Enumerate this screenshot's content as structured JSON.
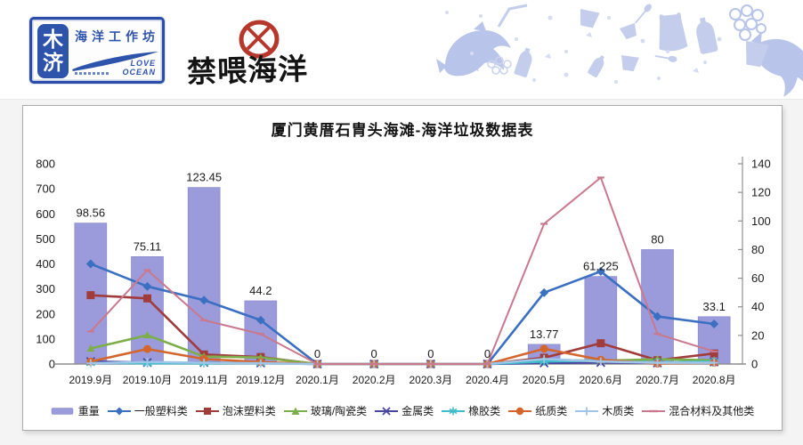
{
  "header": {
    "workshop_logo": {
      "char_top": "木",
      "char_bottom": "济",
      "title": "海洋工作坊",
      "love": "LOVE",
      "ocean": "OCEAN",
      "accent_color": "#2e53ab"
    },
    "ban_logo": {
      "text": "禁喂海洋",
      "symbol": "no-circle-cross-icon",
      "symbol_color": "#b6372c"
    },
    "decor": {
      "pattern": "marine-litter-pattern",
      "color": "#c4cdec",
      "icons": [
        "dolphin-icon",
        "plastic-bottle-icon",
        "plastic-bag-icon",
        "cup-icon",
        "spoon-icon",
        "straw-icon",
        "bubbles-icon"
      ]
    }
  },
  "chart_data": {
    "type": "combo",
    "title": "厦门黄厝石胄头海滩-海洋垃圾数据表",
    "grid": false,
    "legend_position": "bottom",
    "categories": [
      "2019.9月",
      "2019.10月",
      "2019.11月",
      "2019.12月",
      "2020.1月",
      "2020.2月",
      "2020.3月",
      "2020.4月",
      "2020.5月",
      "2020.6月",
      "2020.7月",
      "2020.8月"
    ],
    "left_axis": {
      "min": 0,
      "max": 800,
      "ticks": [
        "0",
        "100",
        "200",
        "300",
        "400",
        "500",
        "600",
        "700",
        "800"
      ]
    },
    "right_axis": {
      "min": 0,
      "max": 140,
      "ticks": [
        "0",
        "20",
        "40",
        "60",
        "80",
        "100",
        "120",
        "140"
      ]
    },
    "bar_series": {
      "name": "重量",
      "axis": "right",
      "color": "#9b9bdb",
      "edge_color": "#8282c9",
      "values": [
        98.56,
        75.11,
        123.45,
        44.2,
        0,
        0,
        0,
        0,
        13.77,
        61.225,
        80,
        33.1
      ],
      "labels": [
        "98.56",
        "75.11",
        "123.45",
        "44.2",
        "0",
        "0",
        "0",
        "0",
        "13.77",
        "61.225",
        "80",
        "33.1"
      ]
    },
    "line_series": [
      {
        "name": "一般塑料类",
        "axis": "left",
        "color": "#3a6fc1",
        "marker": "diamond",
        "values": [
          400,
          310,
          255,
          175,
          0,
          0,
          0,
          0,
          285,
          370,
          190,
          160
        ]
      },
      {
        "name": "泡沫塑料类",
        "axis": "left",
        "color": "#a03c3c",
        "marker": "square",
        "values": [
          275,
          262,
          38,
          28,
          0,
          0,
          0,
          0,
          25,
          83,
          15,
          42
        ]
      },
      {
        "name": "玻璃/陶瓷类",
        "axis": "left",
        "color": "#7cae4a",
        "marker": "triangle",
        "values": [
          62,
          115,
          30,
          26,
          0,
          0,
          0,
          0,
          17,
          13,
          19,
          15
        ]
      },
      {
        "name": "金属类",
        "axis": "left",
        "color": "#4747a1",
        "marker": "x",
        "values": [
          10,
          6,
          6,
          4,
          0,
          0,
          0,
          0,
          4,
          6,
          4,
          8
        ]
      },
      {
        "name": "橡胶类",
        "axis": "left",
        "color": "#3fbdc9",
        "marker": "asterisk",
        "values": [
          4,
          3,
          3,
          3,
          0,
          0,
          0,
          0,
          10,
          14,
          6,
          10
        ]
      },
      {
        "name": "纸质类",
        "axis": "left",
        "color": "#d4662d",
        "marker": "circle",
        "values": [
          10,
          60,
          20,
          8,
          0,
          0,
          0,
          0,
          61,
          17,
          2,
          5
        ]
      },
      {
        "name": "木质类",
        "axis": "left",
        "color": "#9fc5e8",
        "marker": "plus",
        "values": [
          3,
          8,
          5,
          3,
          0,
          0,
          0,
          0,
          20,
          10,
          5,
          5
        ]
      },
      {
        "name": "混合材料及其他类",
        "axis": "left",
        "color": "#c9788d",
        "marker": "dash",
        "values": [
          130,
          375,
          175,
          120,
          0,
          0,
          0,
          0,
          560,
          745,
          120,
          50
        ]
      }
    ]
  }
}
